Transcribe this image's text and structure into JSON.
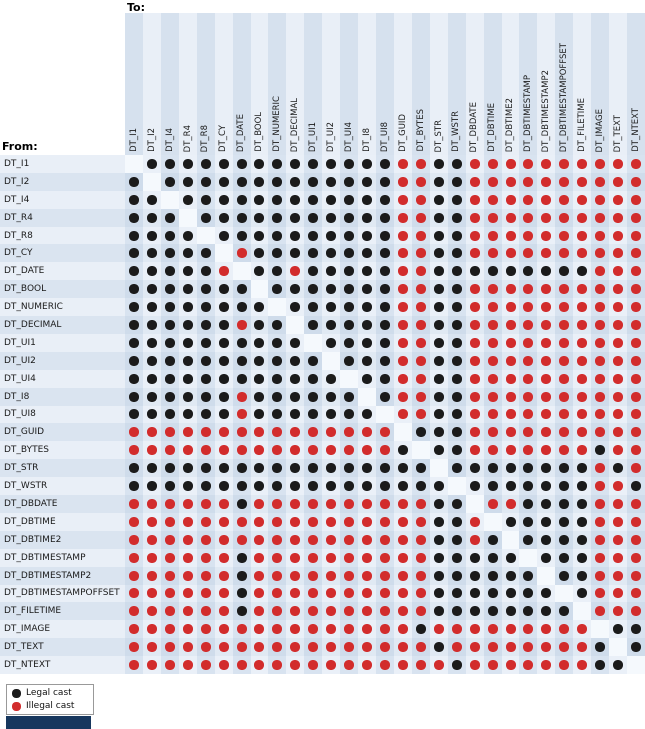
{
  "labels": {
    "to": "To:",
    "from": "From:"
  },
  "legend": {
    "legal": "Legal cast",
    "illegal": "Illegal cast"
  },
  "colors": {
    "legal": "#1b1b1b",
    "illegal": "#d22c2c",
    "banner": "#17375e"
  },
  "chart_data": {
    "type": "heatmap",
    "title": "",
    "x_axis_label": "To:",
    "y_axis_label": "From:",
    "legend": {
      "B": "Legal cast",
      "R": "Illegal cast",
      ".": "same type (empty diagonal, no cast shown)"
    },
    "cols": [
      "DT_I1",
      "DT_I2",
      "DT_I4",
      "DT_R4",
      "DT_R8",
      "DT_CY",
      "DT_DATE",
      "DT_BOOL",
      "DT_NUMERIC",
      "DT_DECIMAL",
      "DT_UI1",
      "DT_UI2",
      "DT_UI4",
      "DT_I8",
      "DT_UI8",
      "DT_GUID",
      "DT_BYTES",
      "DT_STR",
      "DT_WSTR",
      "DT_DBDATE",
      "DT_DBTIME",
      "DT_DBTIME2",
      "DT_DBTIMESTAMP",
      "DT_DBTIMESTAMP2",
      "DT_DBTIMESTAMPOFFSET",
      "DT_FILETIME",
      "DT_IMAGE",
      "DT_TEXT",
      "DT_NTEXT"
    ],
    "rows": [
      "DT_I1",
      "DT_I2",
      "DT_I4",
      "DT_R4",
      "DT_R8",
      "DT_CY",
      "DT_DATE",
      "DT_BOOL",
      "DT_NUMERIC",
      "DT_DECIMAL",
      "DT_UI1",
      "DT_UI2",
      "DT_UI4",
      "DT_I8",
      "DT_UI8",
      "DT_GUID",
      "DT_BYTES",
      "DT_STR",
      "DT_WSTR",
      "DT_DBDATE",
      "DT_DBTIME",
      "DT_DBTIME2",
      "DT_DBTIMESTAMP",
      "DT_DBTIMESTAMP2",
      "DT_DBTIMESTAMPOFFSET",
      "DT_FILETIME",
      "DT_IMAGE",
      "DT_TEXT",
      "DT_NTEXT"
    ],
    "matrix": [
      ".BBBBBBBBBBBBBBRRBBRRRRRRRRRR",
      "B.BBBBBBBBBBBBBRRBBRRRRRRRRRR",
      "BB.BBBBBBBBBBBBRRBBRRRRRRRRRR",
      "BBB.BBBBBBBBBBBRRBBRRRRRRRRRR",
      "BBBB.BBBBBBBBBBRRBBRRRRRRRRRR",
      "BBBBB.RBBBBBBBBRRBBRRRRRRRRRR",
      "BBBBBR.BBRBBBBBRRBBBBBBBBBRRR",
      "BBBBBBB.BBBBBBBRRBBRRRRRRRRRR",
      "BBBBBBBB.BBBBBBRRBBRRRRRRRRRR",
      "BBBBBBRBB.BBBBBRRBBRRRRRRRRRR",
      "BBBBBBBBBB.BBBBRRBBRRRRRRRRRR",
      "BBBBBBBBBBB.BBBRRBBRRRRRRRRRR",
      "BBBBBBBBBBBB.BBRRBBRRRRRRRRRR",
      "BBBBBBRBBBBBB.BRRBBRRRRRRRRRR",
      "BBBBBBRBBBBBBB.RRBBRRRRRRRRRR",
      "RRRRRRRRRRRRRRR.BBBRRRRRRRRRR",
      "RRRRRRRRRRRRRRRB.BBRRRRRRRBRR",
      "BBBBBBBBBBBBBBBBB.BBBBBBBBRBR",
      "BBBBBBBBBBBBBBBBBB.BBBBBBBRRB",
      "RRRRRRBRRRRRRRRRRBB.RRBBBBRRR",
      "RRRRRRRRRRRRRRRRRBBR.BBBBBRRR",
      "RRRRRRRRRRRRRRRRRBBRB.BBBBRRR",
      "RRRRRRBRRRRRRRRRRBBBBB.BBBRRR",
      "RRRRRRBRRRRRRRRRRBBBBBB.BBRRR",
      "RRRRRRBRRRRRRRRRRBBBBBBB.BRRR",
      "RRRRRRBRRRRRRRRRRBBBBBBBB.RRR",
      "RRRRRRRRRRRRRRRRBRRRRRRRRR.BB",
      "RRRRRRRRRRRRRRRRRBRRRRRRRRB.B",
      "RRRRRRRRRRRRRRRRRRBRRRRRRRBB."
    ]
  }
}
